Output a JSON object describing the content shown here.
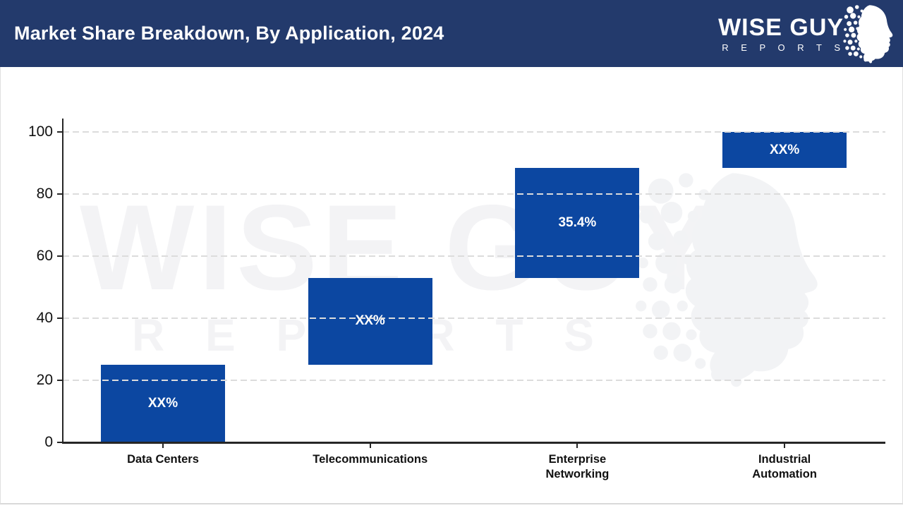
{
  "header": {
    "title": "Market Share Breakdown, By Application, 2024",
    "bg_color": "#233a6c",
    "logo": {
      "line1": "WISE GUY",
      "line2": "R E P O R T S",
      "face_icon": "dotted-head-profile"
    }
  },
  "watermark": {
    "line1": "WISE GUY",
    "line2": "R E P O R T S",
    "face_icon": "dotted-head-profile",
    "color": "#f3f3f5"
  },
  "chart_data": {
    "type": "bar",
    "subtype": "waterfall-floating-bars",
    "title": "Market Share Breakdown, By Application, 2024",
    "categories": [
      "Data Centers",
      "Telecommunications",
      "Enterprise\nNetworking",
      "Industrial\nAutomation"
    ],
    "segments": [
      {
        "category": "Data Centers",
        "start": 0,
        "end": 25,
        "label": "XX%"
      },
      {
        "category": "Telecommunications",
        "start": 25,
        "end": 53,
        "label": "XX%"
      },
      {
        "category": "Enterprise Networking",
        "start": 53,
        "end": 88.4,
        "label": "35.4%"
      },
      {
        "category": "Industrial Automation",
        "start": 88.4,
        "end": 100,
        "label": "XX%"
      }
    ],
    "yticks": [
      0,
      20,
      40,
      60,
      80,
      100
    ],
    "ylim": [
      0,
      100
    ],
    "grid": "horizontal-dashed",
    "legend": "none",
    "bar_color": "#0c47a1",
    "bar_label_color": "#ffffff",
    "axis_color": "#262626",
    "gridline_color": "#dcdcdc"
  }
}
